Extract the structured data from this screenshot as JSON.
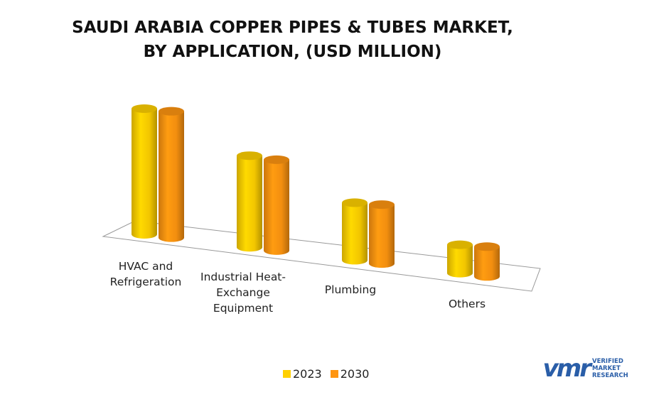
{
  "chart_data": {
    "type": "bar3d",
    "title": [
      "SAUDI ARABIA COPPER PIPES & TUBES MARKET,",
      "BY APPLICATION, (USD MILLION)"
    ],
    "categories": [
      "HVAC and Refrigeration",
      "Industrial Heat-Exchange Equipment",
      "Plumbing",
      "Others"
    ],
    "series": [
      {
        "name": "2023",
        "color": "#ffd000",
        "values": [
          177,
          129,
          81,
          40
        ]
      },
      {
        "name": "2030",
        "color": "#ff9510",
        "values": [
          178,
          128,
          83,
          42
        ]
      }
    ],
    "ylim": [
      0,
      200
    ],
    "legend": "bottom"
  },
  "logo": {
    "text": "VERIFIED MARKET RESEARCH"
  }
}
